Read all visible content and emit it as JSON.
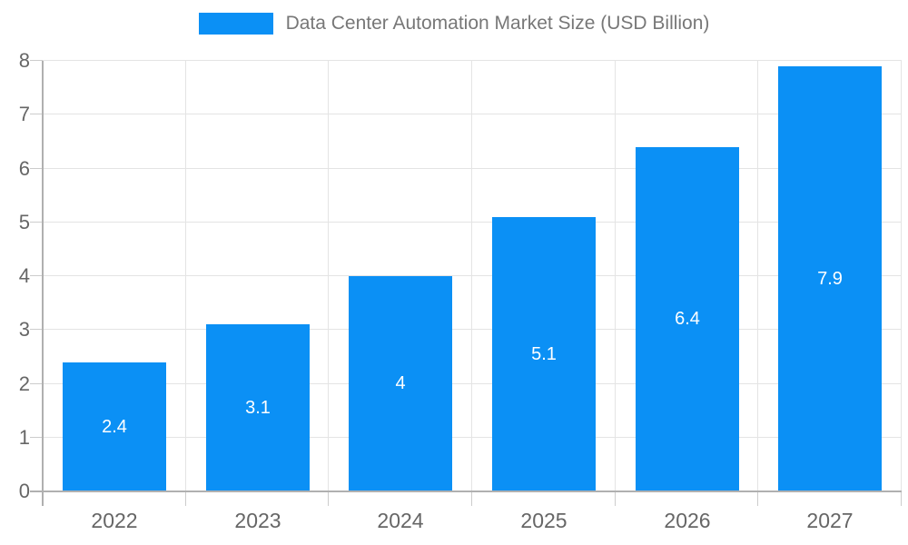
{
  "chart_data": {
    "type": "bar",
    "title": "Data Center Automation Market Size (USD Billion)",
    "categories": [
      "2022",
      "2023",
      "2024",
      "2025",
      "2026",
      "2027"
    ],
    "values": [
      2.4,
      3.1,
      4,
      5.1,
      6.4,
      7.9
    ],
    "value_labels": [
      "2.4",
      "3.1",
      "4",
      "5.1",
      "6.4",
      "7.9"
    ],
    "xlabel": "",
    "ylabel": "",
    "ylim": [
      0,
      8
    ],
    "yticks": [
      0,
      1,
      2,
      3,
      4,
      5,
      6,
      7,
      8
    ],
    "grid": true,
    "legend_position": "top-center"
  },
  "legend": {
    "series_label": "Data Center Automation Market Size (USD Billion)"
  },
  "colors": {
    "bar": "#0b90f5",
    "bar_value_text": "#ffffff",
    "grid": "#e4e4e4",
    "axis_line": "#b0b0b0",
    "tick": "#cccccc",
    "axis_text": "#666666",
    "legend_text": "#777777",
    "background": "#ffffff"
  }
}
